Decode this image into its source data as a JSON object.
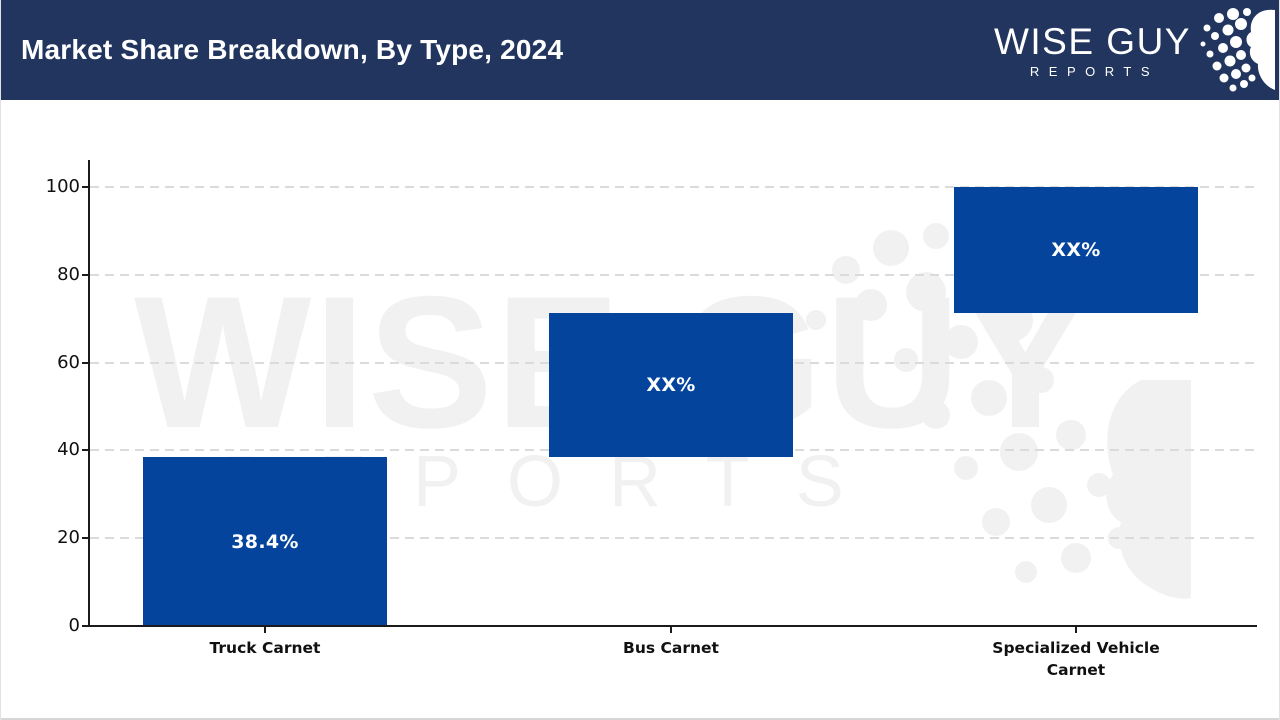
{
  "header": {
    "title": "Market Share Breakdown, By Type, 2024",
    "logo": {
      "wordmark": "WISE GUY",
      "subtext": "REPORTS"
    }
  },
  "watermark": {
    "wordmark": "WISE GUY",
    "subtext": "REPORTS"
  },
  "chart_data": {
    "type": "bar",
    "subtype": "waterfall-range",
    "title": "Market Share Breakdown, By Type, 2024",
    "categories": [
      "Truck Carnet",
      "Bus Carnet",
      "Specialized Vehicle Carnet"
    ],
    "bars": [
      {
        "category": "Truck Carnet",
        "label": "38.4%",
        "start": 0,
        "end": 38.4
      },
      {
        "category": "Bus Carnet",
        "label": "XX%",
        "start": 38.4,
        "end": 71.3
      },
      {
        "category": "Specialized Vehicle Carnet",
        "label": "XX%",
        "start": 71.3,
        "end": 100
      }
    ],
    "xlabel": "",
    "ylabel": "",
    "yticks": [
      0,
      20,
      40,
      60,
      80,
      100
    ],
    "ylim": [
      0,
      106
    ],
    "grid": "horizontal-dashed",
    "legend": "none",
    "bar_color": "#04449C",
    "bar_label_color": "#FFFFFF"
  },
  "colors": {
    "header_bg": "#21355F",
    "bar": "#04449C",
    "grid": "#DBDBDB",
    "axis": "#1A1A1A",
    "watermark": "#F1F1F2",
    "page_bg": "#FFFFFF",
    "hairline": "#D6D6D6"
  }
}
